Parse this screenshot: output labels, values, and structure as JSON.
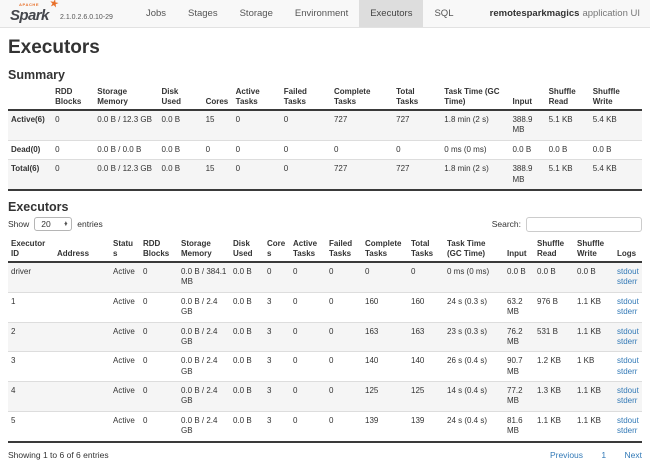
{
  "navbar": {
    "logo_word": "Spark",
    "logo_apache": "APACHE",
    "version": "2.1.0.2.6.0.10-29",
    "tabs": [
      {
        "label": "Jobs",
        "active": false
      },
      {
        "label": "Stages",
        "active": false
      },
      {
        "label": "Storage",
        "active": false
      },
      {
        "label": "Environment",
        "active": false
      },
      {
        "label": "Executors",
        "active": true
      },
      {
        "label": "SQL",
        "active": false
      }
    ],
    "app_name": "remotesparkmagics",
    "app_suffix": "application UI"
  },
  "page": {
    "title": "Executors"
  },
  "summary": {
    "heading": "Summary",
    "columns": [
      "",
      "RDD Blocks",
      "Storage Memory",
      "Disk Used",
      "Cores",
      "Active Tasks",
      "Failed Tasks",
      "Complete Tasks",
      "Total Tasks",
      "Task Time (GC Time)",
      "Input",
      "Shuffle Read",
      "Shuffle Write"
    ],
    "rows": [
      {
        "label": "Active(6)",
        "rdd_blocks": "0",
        "storage_memory": "0.0 B / 12.3 GB",
        "disk_used": "0.0 B",
        "cores": "15",
        "active_tasks": "0",
        "failed_tasks": "0",
        "complete_tasks": "727",
        "total_tasks": "727",
        "task_time": "1.8 min (2 s)",
        "input": "388.9 MB",
        "shuffle_read": "5.1 KB",
        "shuffle_write": "5.4 KB"
      },
      {
        "label": "Dead(0)",
        "rdd_blocks": "0",
        "storage_memory": "0.0 B / 0.0 B",
        "disk_used": "0.0 B",
        "cores": "0",
        "active_tasks": "0",
        "failed_tasks": "0",
        "complete_tasks": "0",
        "total_tasks": "0",
        "task_time": "0 ms (0 ms)",
        "input": "0.0 B",
        "shuffle_read": "0.0 B",
        "shuffle_write": "0.0 B"
      },
      {
        "label": "Total(6)",
        "rdd_blocks": "0",
        "storage_memory": "0.0 B / 12.3 GB",
        "disk_used": "0.0 B",
        "cores": "15",
        "active_tasks": "0",
        "failed_tasks": "0",
        "complete_tasks": "727",
        "total_tasks": "727",
        "task_time": "1.8 min (2 s)",
        "input": "388.9 MB",
        "shuffle_read": "5.1 KB",
        "shuffle_write": "5.4 KB"
      }
    ]
  },
  "executors": {
    "heading": "Executors",
    "show_label": "Show",
    "page_size": "20",
    "entries_label": "entries",
    "search_label": "Search:",
    "columns": [
      "Executor ID",
      "Address",
      "Status",
      "RDD Blocks",
      "Storage Memory",
      "Disk Used",
      "Cores",
      "Active Tasks",
      "Failed Tasks",
      "Complete Tasks",
      "Total Tasks",
      "Task Time (GC Time)",
      "Input",
      "Shuffle Read",
      "Shuffle Write",
      "Logs"
    ],
    "rows": [
      {
        "id": "driver",
        "address": "",
        "status": "Active",
        "rdd_blocks": "0",
        "storage_memory": "0.0 B / 384.1 MB",
        "disk_used": "0.0 B",
        "cores": "0",
        "active_tasks": "0",
        "failed_tasks": "0",
        "complete_tasks": "0",
        "total_tasks": "0",
        "task_time": "0 ms (0 ms)",
        "input": "0.0 B",
        "shuffle_read": "0.0 B",
        "shuffle_write": "0.0 B",
        "log_stdout": "stdout",
        "log_stderr": "stderr"
      },
      {
        "id": "1",
        "address": "",
        "status": "Active",
        "rdd_blocks": "0",
        "storage_memory": "0.0 B / 2.4 GB",
        "disk_used": "0.0 B",
        "cores": "3",
        "active_tasks": "0",
        "failed_tasks": "0",
        "complete_tasks": "160",
        "total_tasks": "160",
        "task_time": "24 s (0.3 s)",
        "input": "63.2 MB",
        "shuffle_read": "976 B",
        "shuffle_write": "1.1 KB",
        "log_stdout": "stdout",
        "log_stderr": "stderr"
      },
      {
        "id": "2",
        "address": "",
        "status": "Active",
        "rdd_blocks": "0",
        "storage_memory": "0.0 B / 2.4 GB",
        "disk_used": "0.0 B",
        "cores": "3",
        "active_tasks": "0",
        "failed_tasks": "0",
        "complete_tasks": "163",
        "total_tasks": "163",
        "task_time": "23 s (0.3 s)",
        "input": "76.2 MB",
        "shuffle_read": "531 B",
        "shuffle_write": "1.1 KB",
        "log_stdout": "stdout",
        "log_stderr": "stderr"
      },
      {
        "id": "3",
        "address": "",
        "status": "Active",
        "rdd_blocks": "0",
        "storage_memory": "0.0 B / 2.4 GB",
        "disk_used": "0.0 B",
        "cores": "3",
        "active_tasks": "0",
        "failed_tasks": "0",
        "complete_tasks": "140",
        "total_tasks": "140",
        "task_time": "26 s (0.4 s)",
        "input": "90.7 MB",
        "shuffle_read": "1.2 KB",
        "shuffle_write": "1 KB",
        "log_stdout": "stdout",
        "log_stderr": "stderr"
      },
      {
        "id": "4",
        "address": "",
        "status": "Active",
        "rdd_blocks": "0",
        "storage_memory": "0.0 B / 2.4 GB",
        "disk_used": "0.0 B",
        "cores": "3",
        "active_tasks": "0",
        "failed_tasks": "0",
        "complete_tasks": "125",
        "total_tasks": "125",
        "task_time": "14 s (0.4 s)",
        "input": "77.2 MB",
        "shuffle_read": "1.3 KB",
        "shuffle_write": "1.1 KB",
        "log_stdout": "stdout",
        "log_stderr": "stderr"
      },
      {
        "id": "5",
        "address": "",
        "status": "Active",
        "rdd_blocks": "0",
        "storage_memory": "0.0 B / 2.4 GB",
        "disk_used": "0.0 B",
        "cores": "3",
        "active_tasks": "0",
        "failed_tasks": "0",
        "complete_tasks": "139",
        "total_tasks": "139",
        "task_time": "24 s (0.4 s)",
        "input": "81.6 MB",
        "shuffle_read": "1.1 KB",
        "shuffle_write": "1.1 KB",
        "log_stdout": "stdout",
        "log_stderr": "stderr"
      }
    ],
    "footer": {
      "showing": "Showing 1 to 6 of 6 entries",
      "previous": "Previous",
      "page": "1",
      "next": "Next"
    }
  }
}
